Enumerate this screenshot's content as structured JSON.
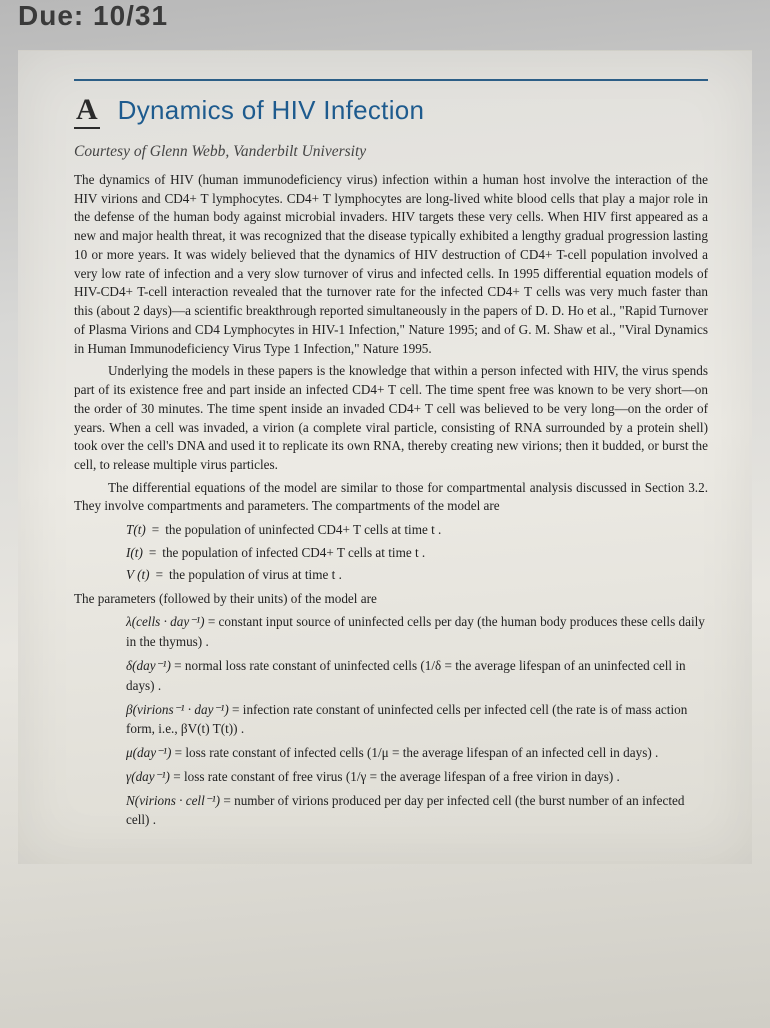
{
  "page": {
    "due_label": "Due: 10/31",
    "section_letter": "A",
    "title": "Dynamics of HIV Infection",
    "courtesy": "Courtesy of Glenn Webb, Vanderbilt University",
    "para1": "The dynamics of HIV (human immunodeficiency virus) infection within a human host involve the interaction of the HIV virions and CD4+ T lymphocytes. CD4+ T lymphocytes are long-lived white blood cells that play a major role in the defense of the human body against microbial invaders. HIV targets these very cells. When HIV first appeared as a new and major health threat, it was recognized that the disease typically exhibited a lengthy gradual progression lasting 10 or more years. It was widely believed that the dynamics of HIV destruction of CD4+ T-cell population involved a very low rate of infection and a very slow turnover of virus and infected cells. In 1995 differential equation models of HIV-CD4+ T-cell interaction revealed that the turnover rate for the infected CD4+ T cells was very much faster than this (about 2 days)—a scientific breakthrough reported simultaneously in the papers of D. D. Ho et al., \"Rapid Turnover of Plasma Virions and CD4 Lymphocytes in HIV-1 Infection,\" Nature 1995; and of G. M. Shaw et al., \"Viral Dynamics in Human Immunodeficiency Virus Type 1 Infection,\" Nature 1995.",
    "para2": "Underlying the models in these papers is the knowledge that within a person infected with HIV, the virus spends part of its existence free and part inside an infected CD4+ T cell. The time spent free was known to be very short—on the order of 30 minutes. The time spent inside an invaded CD4+ T cell was believed to be very long—on the order of years. When a cell was invaded, a virion (a complete viral particle, consisting of RNA surrounded by a protein shell) took over the cell's DNA and used it to replicate its own RNA, thereby creating new virions; then it budded, or burst the cell, to release multiple virus particles.",
    "para3": "The differential equations of the model are similar to those for compartmental analysis discussed in Section 3.2. They involve compartments and parameters. The compartments of the model are",
    "compartments": [
      {
        "sym": "T(t)",
        "desc": "the population of uninfected CD4+ T cells at time  t ."
      },
      {
        "sym": "I(t)",
        "desc": "the population of infected CD4+ T cells at time  t ."
      },
      {
        "sym": "V (t)",
        "desc": "the population of virus at time  t ."
      }
    ],
    "para4": "The parameters (followed by their units) of the model are",
    "parameters": [
      {
        "sym": "λ(cells · day⁻¹)",
        "desc": "constant input source of uninfected cells per day (the human body produces these cells daily in the thymus) ."
      },
      {
        "sym": "δ(day⁻¹)",
        "desc": "normal loss rate constant of uninfected cells (1/δ = the average lifespan of an uninfected cell in days) ."
      },
      {
        "sym": "β(virions⁻¹ · day⁻¹)",
        "desc": "infection rate constant of uninfected cells per infected cell (the rate is of mass action form, i.e., βV(t) T(t)) ."
      },
      {
        "sym": "μ(day⁻¹)",
        "desc": "loss rate constant of infected cells (1/μ = the average lifespan of an infected cell in days) ."
      },
      {
        "sym": "γ(day⁻¹)",
        "desc": "loss rate constant of free virus (1/γ = the average lifespan of a free virion in days) ."
      },
      {
        "sym": "N(virions · cell⁻¹)",
        "desc": "number of virions produced per day per infected cell (the burst number of an infected cell) ."
      }
    ],
    "colors": {
      "rule": "#2c5e86",
      "title": "#1e5b8e",
      "body_text": "#222222",
      "paper_bg_top": "#e0dfdb",
      "paper_bg_bot": "#dedcd4",
      "outer_bg": "#b8b8b8"
    },
    "typography": {
      "title_fontsize_pt": 20,
      "body_fontsize_pt": 10,
      "courtesy_fontsize_pt": 12,
      "due_fontsize_pt": 21
    }
  }
}
